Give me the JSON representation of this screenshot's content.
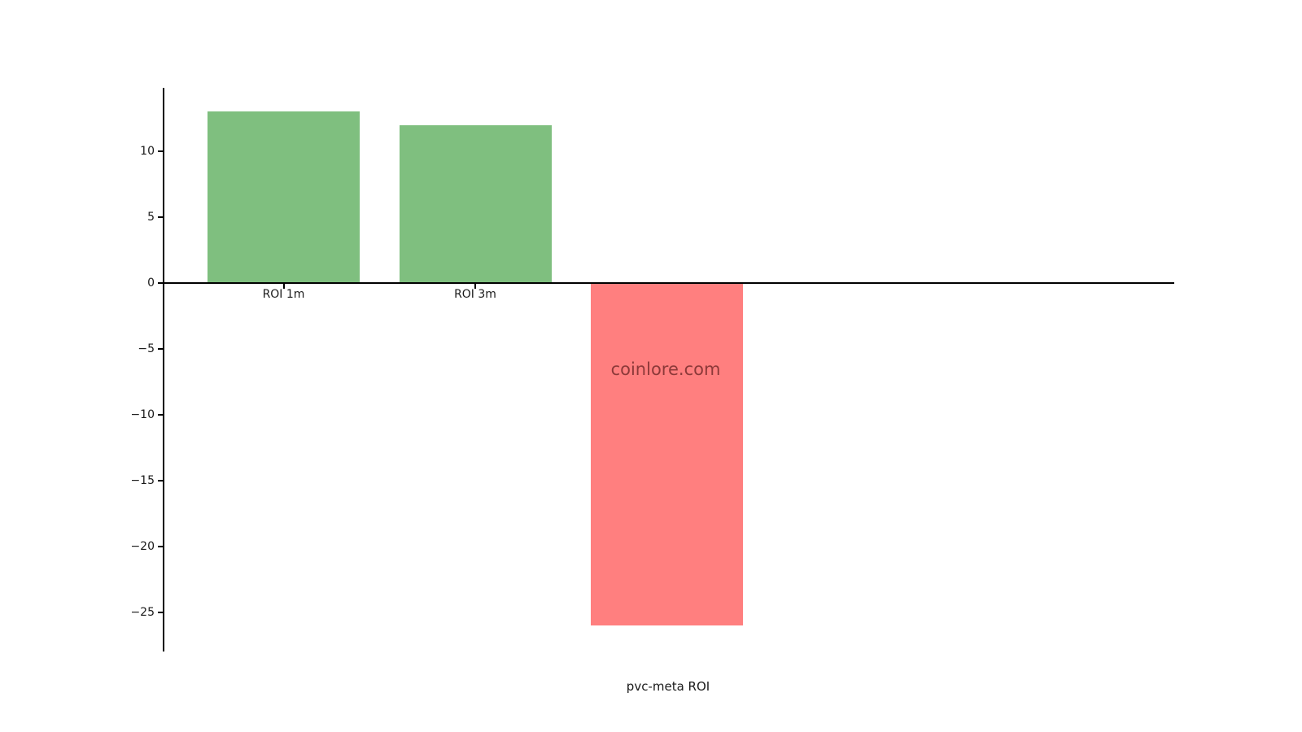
{
  "chart_data": {
    "type": "bar",
    "title": "",
    "xlabel": "pvc-meta ROI",
    "ylabel": "",
    "categories": [
      "ROI 1m",
      "ROI 3m",
      ""
    ],
    "values": [
      13,
      12,
      -26
    ],
    "series": [
      {
        "name": "pvc-meta ROI",
        "values": [
          13,
          12,
          -26
        ]
      }
    ],
    "positive_color": "#7fbf7f",
    "negative_color": "#ff7f7f",
    "y_ticks": [
      {
        "value": 10,
        "label": "10"
      },
      {
        "value": 5,
        "label": "5"
      },
      {
        "value": 0,
        "label": "0"
      },
      {
        "value": -5,
        "label": "−5"
      },
      {
        "value": -10,
        "label": "−10"
      },
      {
        "value": -15,
        "label": "−15"
      },
      {
        "value": -20,
        "label": "−20"
      },
      {
        "value": -25,
        "label": "−25"
      }
    ],
    "x_ticks": [
      {
        "index": 0,
        "label": "ROI 1m"
      },
      {
        "index": 1,
        "label": "ROI 3m"
      }
    ],
    "ylim": [
      -27.95,
      14.95
    ],
    "grid": false,
    "legend": "none",
    "watermark": "coinlore.com",
    "background_color": "#ffffff",
    "axis_color": "#000000"
  }
}
